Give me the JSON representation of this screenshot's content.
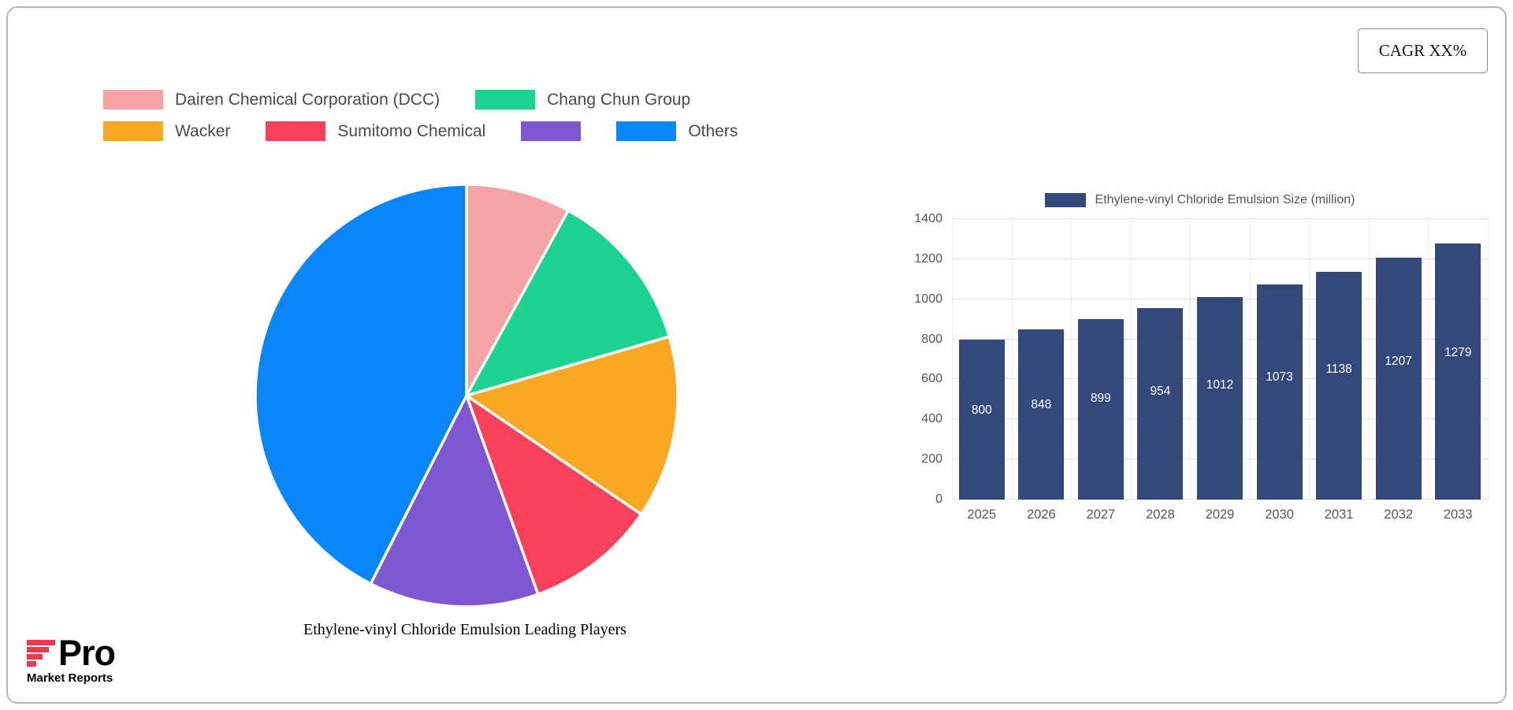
{
  "cagr": {
    "label": "CAGR XX%"
  },
  "logo": {
    "brand": "Pro",
    "subtitle": "Market Reports"
  },
  "chart_data": [
    {
      "type": "pie",
      "title": "Ethylene-vinyl Chloride Emulsion Leading Players",
      "labels": [
        "Dairen Chemical Corporation (DCC)",
        "Chang Chun Group",
        "Wacker",
        "Sumitomo Chemical",
        "",
        "Others"
      ],
      "values": [
        8,
        12.5,
        14,
        10,
        13,
        42.5
      ],
      "colors": [
        "#f5a3a4",
        "#1cd490",
        "#f8a822",
        "#f9415c",
        "#7f57d2",
        "#0b86f8"
      ],
      "legend_position": "top-left",
      "legend_rows": [
        2,
        4
      ]
    },
    {
      "type": "bar",
      "legend": "Ethylene-vinyl Chloride Emulsion Size (million)",
      "categories": [
        "2025",
        "2026",
        "2027",
        "2028",
        "2029",
        "2030",
        "2031",
        "2032",
        "2033"
      ],
      "values": [
        800,
        848,
        899,
        954,
        1012,
        1073,
        1138,
        1207,
        1279
      ],
      "bar_color": "#33497b",
      "ylim": [
        0,
        1400
      ],
      "yticks": [
        0,
        200,
        400,
        600,
        800,
        1000,
        1200,
        1400
      ],
      "grid": true,
      "value_labels": "inside-white",
      "xlabel": "",
      "ylabel": ""
    }
  ]
}
